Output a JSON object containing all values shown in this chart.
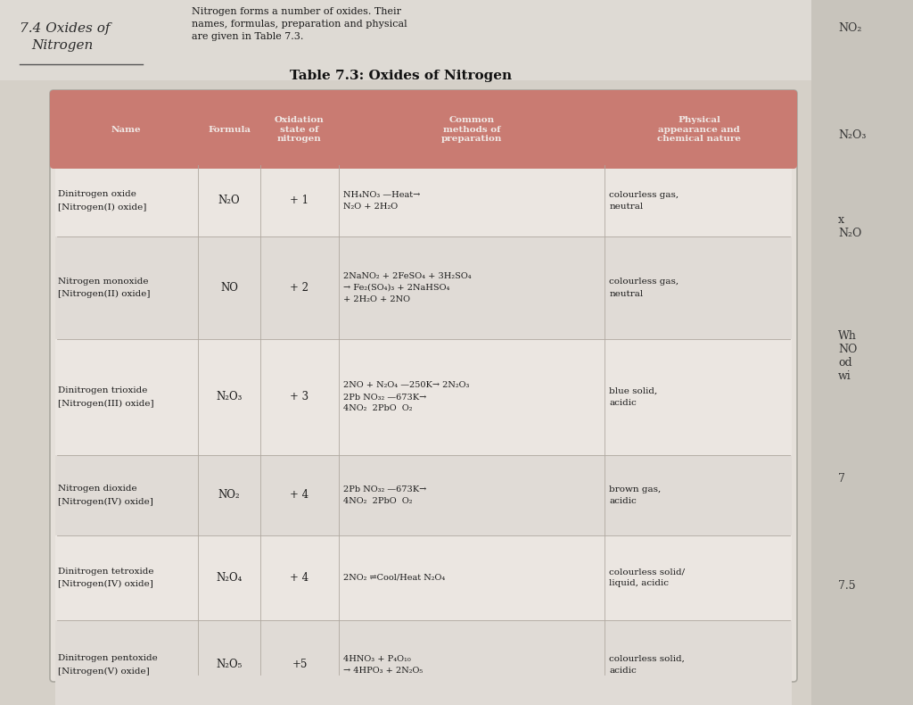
{
  "title": "Table 7.3: Oxides of Nitrogen",
  "section_title": "7.4 Oxides of\n    Nitrogen",
  "intro_text": "Nitrogen forms a number of oxides. Their\nnames, formulas, preparation and physical\nare given in Table 7.3.",
  "col_headers": [
    "Name",
    "Formula",
    "Oxidation\nstate of\nnitrogen",
    "Common\nmethods of\npreparation",
    "Physical\nappearance and\nchemical nature"
  ],
  "rows": [
    {
      "name": "Dinitrogen oxide\n[Nitrogen(I) oxide]",
      "formula": "N₂O",
      "oxidation": "+ 1",
      "preparation": "NH₄NO₃ —Heat→\nN₂O + 2H₂O",
      "appearance": "colourless gas,\nneutral"
    },
    {
      "name": "Nitrogen monoxide\n[Nitrogen(II) oxide]",
      "formula": "NO",
      "oxidation": "+ 2",
      "preparation": "2NaNO₂ + 2FeSO₄ + 3H₂SO₄\n→ Fe₂(SO₄)₃ + 2NaHSO₄\n+ 2H₂O + 2NO",
      "appearance": "colourless gas,\nneutral"
    },
    {
      "name": "Dinitrogen trioxide\n[Nitrogen(III) oxide]",
      "formula": "N₂O₃",
      "oxidation": "+ 3",
      "preparation": "2NO + N₂O₄ —250K→ 2N₂O₃\n2Pb NO₃₂ —673K→\n4NO₂  2PbO  O₂",
      "appearance": "blue solid,\nacidic"
    },
    {
      "name": "Nitrogen dioxide\n[Nitrogen(IV) oxide]",
      "formula": "NO₂",
      "oxidation": "+ 4",
      "preparation": "2Pb NO₃₂ —673K→\n4NO₂  2PbO  O₂",
      "appearance": "brown gas,\nacidic"
    },
    {
      "name": "Dinitrogen tetroxide\n[Nitrogen(IV) oxide]",
      "formula": "N₂O₄",
      "oxidation": "+ 4",
      "preparation": "2NO₂ ⇌Cool/Heat N₂O₄",
      "appearance": "colourless solid/\nliquid, acidic"
    },
    {
      "name": "Dinitrogen pentoxide\n[Nitrogen(V) oxide]",
      "formula": "N₂O₅",
      "oxidation": "+5",
      "preparation": "4HNO₃ + P₄O₁₀\n→ 4HPO₃ + 2N₂O₅",
      "appearance": "colourless solid,\nacidic"
    }
  ],
  "page_bg": "#ccc8c0",
  "content_bg": "#d8d4cc",
  "table_bg": "#e8e3de",
  "header_pink": "#c97b72",
  "header_text_color": "#f0e8e5",
  "row_bg_light": "#ebe6e1",
  "row_bg_dark": "#e0dbd6",
  "text_dark": "#1a1a1a",
  "divider_color": "#b0a8a0"
}
